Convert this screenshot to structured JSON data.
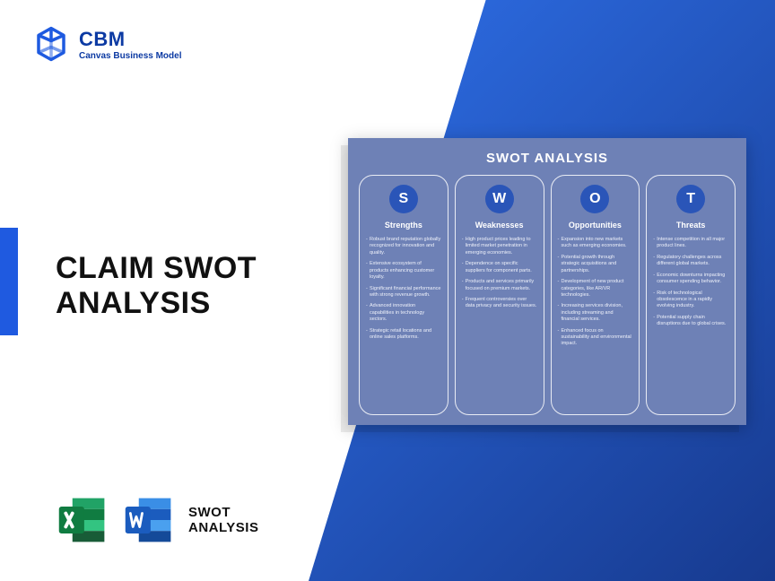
{
  "logo": {
    "title": "CBM",
    "subtitle": "Canvas Business Model",
    "color": "#0c3aa3"
  },
  "main_title": "CLAIM SWOT\nANALYSIS",
  "file_icons": {
    "excel_color_dark": "#107c41",
    "excel_color_light": "#21a366",
    "word_color_dark": "#1b5cbe",
    "word_color_light": "#3a8ee6",
    "label": "SWOT\nANALYSIS"
  },
  "swot": {
    "title": "SWOT ANALYSIS",
    "card_bg": "#6e81b6",
    "badge_bg": "#2a55b8",
    "columns": [
      {
        "letter": "S",
        "heading": "Strengths",
        "items": [
          "Robust brand reputation globally recognized for innovation and quality.",
          "Extensive ecosystem of products enhancing customer loyalty.",
          "Significant financial performance with strong revenue growth.",
          "Advanced innovation capabilities in technology sectors.",
          "Strategic retail locations and online sales platforms."
        ]
      },
      {
        "letter": "W",
        "heading": "Weaknesses",
        "items": [
          "High product prices leading to limited market penetration in emerging economies.",
          "Dependence on specific suppliers for component parts.",
          "Products and services primarily focused on premium markets.",
          "Frequent controversies over data privacy and security issues."
        ]
      },
      {
        "letter": "O",
        "heading": "Opportunities",
        "items": [
          "Expansion into new markets such as emerging economies.",
          "Potential growth through strategic acquisitions and partnerships.",
          "Development of new product categories, like AR/VR technologies.",
          "Increasing services division, including streaming and financial services.",
          "Enhanced focus on sustainability and environmental impact."
        ]
      },
      {
        "letter": "T",
        "heading": "Threats",
        "items": [
          "Intense competition in all major product lines.",
          "Regulatory challenges across different global markets.",
          "Economic downturns impacting consumer spending behavior.",
          "Risk of technological obsolescence in a rapidly evolving industry.",
          "Potential supply chain disruptions due to global crises."
        ]
      }
    ]
  },
  "colors": {
    "gradient_start": "#2e6fe8",
    "gradient_end": "#173a8f",
    "accent_tab": "#1f5ae0"
  }
}
